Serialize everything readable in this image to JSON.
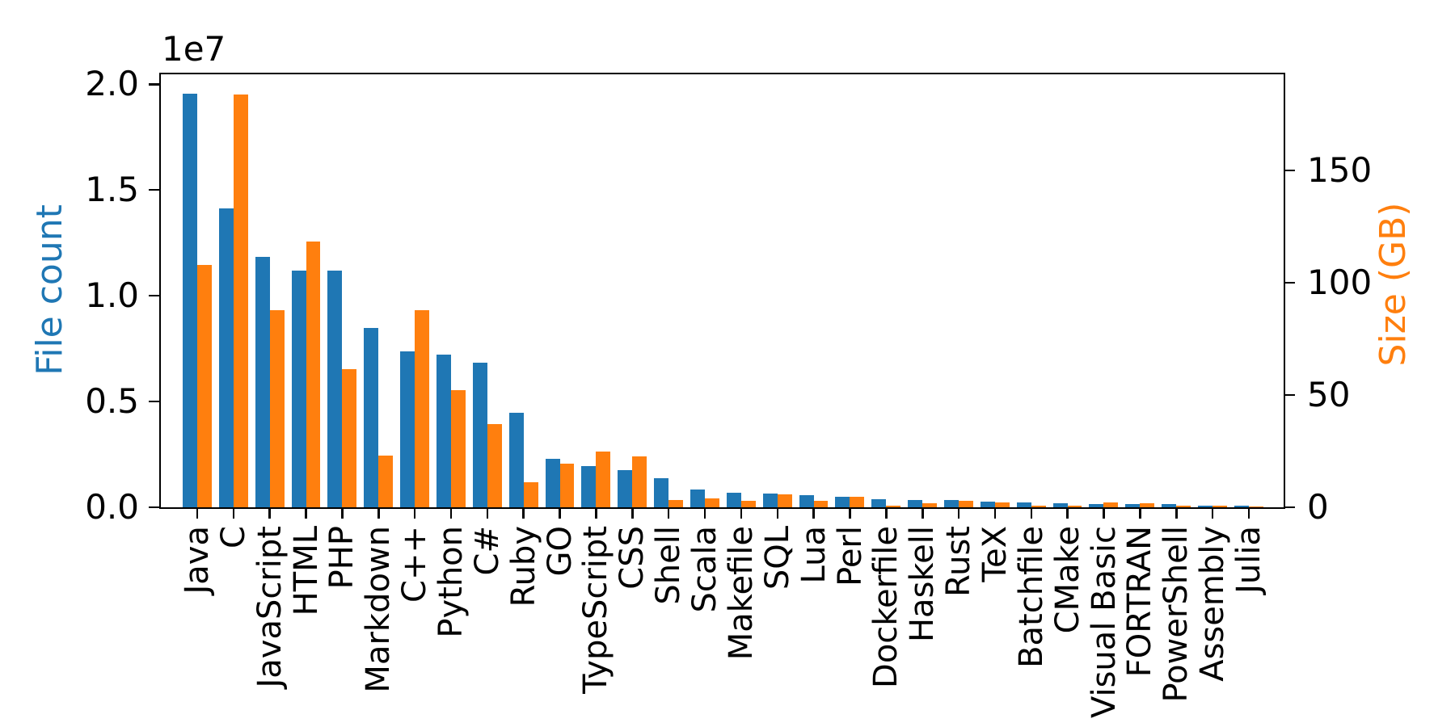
{
  "chart_data": {
    "type": "bar",
    "title": "",
    "xlabel": "",
    "ylabel_left": "File count",
    "ylabel_right": "Size (GB)",
    "offset_text": "1e7",
    "grid": false,
    "legend": "none",
    "background": "#ffffff",
    "categories": [
      "Java",
      "C",
      "JavaScript",
      "HTML",
      "PHP",
      "Markdown",
      "C++",
      "Python",
      "C#",
      "Ruby",
      "GO",
      "TypeScript",
      "CSS",
      "Shell",
      "Scala",
      "Makefile",
      "SQL",
      "Lua",
      "Perl",
      "Dockerfile",
      "Haskell",
      "Rust",
      "TeX",
      "Batchfile",
      "CMake",
      "Visual Basic",
      "FORTRAN",
      "PowerShell",
      "Assembly",
      "Julia"
    ],
    "series": [
      {
        "name": "File count",
        "axis": "left",
        "color": "#1f77b4",
        "values": [
          19548190,
          14143113,
          11839883,
          11178557,
          11177610,
          8464626,
          7380520,
          7226626,
          6811652,
          4473331,
          2265436,
          1940406,
          1734406,
          1385648,
          835755,
          679430,
          656671,
          578554,
          497949,
          366505,
          340623,
          322431,
          251015,
          236945,
          175282,
          155652,
          142038,
          136846,
          82905,
          58317
        ]
      },
      {
        "name": "Size (GB)",
        "axis": "right",
        "color": "#ff7f0e",
        "values": [
          107.7,
          183.83,
          87.82,
          118.12,
          61.41,
          23.09,
          87.73,
          52.03,
          36.83,
          10.95,
          19.28,
          24.59,
          22.61,
          3.01,
          3.87,
          2.92,
          5.67,
          2.81,
          4.7,
          0.71,
          1.85,
          2.68,
          2.15,
          0.7,
          0.54,
          1.91,
          1.62,
          0.69,
          0.78,
          0.29
        ]
      }
    ],
    "left_axis": {
      "label": "File count",
      "color": "#1f77b4",
      "ylim": [
        0,
        20500000
      ],
      "tick_values": [
        0,
        5000000,
        10000000,
        15000000,
        20000000
      ],
      "tick_labels": [
        "0.0",
        "0.5",
        "1.0",
        "1.5",
        "2.0"
      ],
      "offset_text": "1e7"
    },
    "right_axis": {
      "label": "Size (GB)",
      "color": "#ff7f0e",
      "ylim": [
        0,
        193
      ],
      "tick_values": [
        0,
        50,
        100,
        150
      ],
      "tick_labels": [
        "0",
        "50",
        "100",
        "150"
      ]
    }
  }
}
